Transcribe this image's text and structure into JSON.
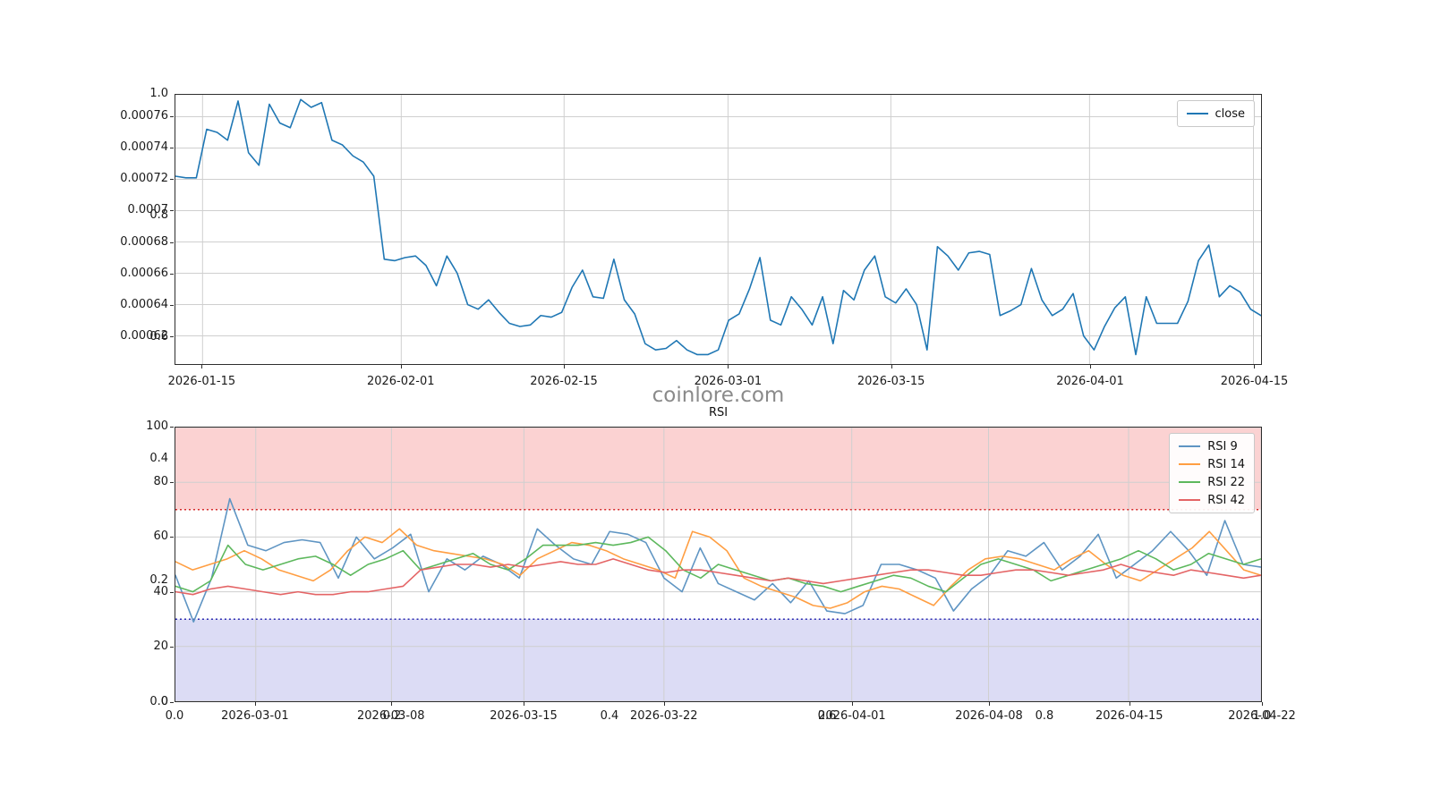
{
  "watermark": "coinlore.com",
  "overlay_axis": {
    "x_ticks": [
      {
        "label": "0.0",
        "pos": 0.0
      },
      {
        "label": "0.2",
        "pos": 0.2
      },
      {
        "label": "0.4",
        "pos": 0.4
      },
      {
        "label": "0.6",
        "pos": 0.6
      },
      {
        "label": "0.8",
        "pos": 0.8
      },
      {
        "label": "1.0",
        "pos": 1.0
      }
    ],
    "y_ticks": [
      {
        "label": "0.0",
        "pos": 0.0
      },
      {
        "label": "0.2",
        "pos": 0.2
      },
      {
        "label": "0.4",
        "pos": 0.4
      },
      {
        "label": "0.6",
        "pos": 0.6
      },
      {
        "label": "0.8",
        "pos": 0.8
      },
      {
        "label": "1.0",
        "pos": 1.0
      }
    ]
  },
  "chart_data": [
    {
      "type": "line",
      "title": "",
      "grid": true,
      "legend_position": "upper right",
      "ylim": [
        0.000602,
        0.000774
      ],
      "x_ticks": [
        {
          "label": "2026-01-15",
          "pos": 0.025
        },
        {
          "label": "2026-02-01",
          "pos": 0.208
        },
        {
          "label": "2026-02-15",
          "pos": 0.358
        },
        {
          "label": "2026-03-01",
          "pos": 0.509
        },
        {
          "label": "2026-03-15",
          "pos": 0.659
        },
        {
          "label": "2026-04-01",
          "pos": 0.842
        },
        {
          "label": "2026-04-15",
          "pos": 0.993
        }
      ],
      "y_ticks": [
        {
          "label": "0.00062",
          "value": 0.00062
        },
        {
          "label": "0.00064",
          "value": 0.00064
        },
        {
          "label": "0.00066",
          "value": 0.00066
        },
        {
          "label": "0.00068",
          "value": 0.00068
        },
        {
          "label": "0.0007",
          "value": 0.0007
        },
        {
          "label": "0.00072",
          "value": 0.00072
        },
        {
          "label": "0.00074",
          "value": 0.00074
        },
        {
          "label": "0.00076",
          "value": 0.00076
        }
      ],
      "series": [
        {
          "name": "close",
          "color": "#1f77b4",
          "values": [
            0.000722,
            0.000721,
            0.000721,
            0.000752,
            0.00075,
            0.000745,
            0.00077,
            0.000737,
            0.000729,
            0.000768,
            0.000756,
            0.000753,
            0.000771,
            0.000766,
            0.000769,
            0.000745,
            0.000742,
            0.000735,
            0.000731,
            0.000722,
            0.000669,
            0.000668,
            0.00067,
            0.000671,
            0.000665,
            0.000652,
            0.000671,
            0.00066,
            0.00064,
            0.000637,
            0.000643,
            0.000635,
            0.000628,
            0.000626,
            0.000627,
            0.000633,
            0.000632,
            0.000635,
            0.000651,
            0.000662,
            0.000645,
            0.000644,
            0.000669,
            0.000643,
            0.000634,
            0.000615,
            0.000611,
            0.000612,
            0.000617,
            0.000611,
            0.000608,
            0.000608,
            0.000611,
            0.00063,
            0.000634,
            0.00065,
            0.00067,
            0.00063,
            0.000627,
            0.000645,
            0.000637,
            0.000627,
            0.000645,
            0.000615,
            0.000649,
            0.000643,
            0.000662,
            0.000671,
            0.000645,
            0.000641,
            0.00065,
            0.00064,
            0.000611,
            0.000677,
            0.000671,
            0.000662,
            0.000673,
            0.000674,
            0.000672,
            0.000633,
            0.000636,
            0.00064,
            0.000663,
            0.000643,
            0.000633,
            0.000637,
            0.000647,
            0.00062,
            0.000611,
            0.000626,
            0.000638,
            0.000645,
            0.000608,
            0.000645,
            0.000628,
            0.000628,
            0.000628,
            0.000642,
            0.000668,
            0.000678,
            0.000645,
            0.000652,
            0.000648,
            0.000637,
            0.000633
          ]
        }
      ]
    },
    {
      "type": "line",
      "title": "RSI",
      "grid": true,
      "legend_position": "upper right",
      "ylim": [
        0,
        100
      ],
      "x_ticks": [
        {
          "label": "2026-03-01",
          "pos": 0.074
        },
        {
          "label": "2026-03-08",
          "pos": 0.199
        },
        {
          "label": "2026-03-15",
          "pos": 0.321
        },
        {
          "label": "2026-03-22",
          "pos": 0.45
        },
        {
          "label": "2026-04-01",
          "pos": 0.623
        },
        {
          "label": "2026-04-08",
          "pos": 0.749
        },
        {
          "label": "2026-04-15",
          "pos": 0.878
        },
        {
          "label": "2026-04-22",
          "pos": 1.0
        }
      ],
      "y_ticks": [
        {
          "label": "0",
          "value": 0
        },
        {
          "label": "20",
          "value": 20
        },
        {
          "label": "40",
          "value": 40
        },
        {
          "label": "60",
          "value": 60
        },
        {
          "label": "80",
          "value": 80
        },
        {
          "label": "100",
          "value": 100
        }
      ],
      "bands": [
        {
          "name": "overbought-band",
          "from": 70,
          "to": 100,
          "color": "#fbd2d2"
        },
        {
          "name": "oversold-band",
          "from": 0,
          "to": 30,
          "color": "#dcdcf5"
        }
      ],
      "hlines": [
        {
          "name": "overbought-threshold-line",
          "value": 70,
          "color": "#d42a2a",
          "style": "dotted"
        },
        {
          "name": "oversold-threshold-line",
          "value": 30,
          "color": "#2a2ab0",
          "style": "dotted"
        }
      ],
      "series": [
        {
          "name": "RSI 9",
          "color": "#5f95c3",
          "values": [
            46,
            29,
            45,
            74,
            57,
            55,
            58,
            59,
            58,
            45,
            60,
            52,
            56,
            61,
            40,
            52,
            48,
            53,
            50,
            45,
            63,
            57,
            52,
            50,
            62,
            61,
            58,
            45,
            40,
            56,
            43,
            40,
            37,
            43,
            36,
            44,
            33,
            32,
            35,
            50,
            50,
            48,
            45,
            33,
            41,
            46,
            55,
            53,
            58,
            48,
            53,
            61,
            45,
            50,
            55,
            62,
            55,
            46,
            66,
            50,
            49
          ]
        },
        {
          "name": "RSI 14",
          "color": "#ff9e42",
          "values": [
            51,
            48,
            50,
            52,
            55,
            52,
            48,
            46,
            44,
            48,
            55,
            60,
            58,
            63,
            57,
            55,
            54,
            53,
            52,
            50,
            46,
            52,
            55,
            58,
            57,
            55,
            52,
            50,
            48,
            45,
            62,
            60,
            55,
            45,
            42,
            40,
            38,
            35,
            34,
            36,
            40,
            42,
            41,
            38,
            35,
            42,
            48,
            52,
            53,
            52,
            50,
            48,
            52,
            55,
            50,
            46,
            44,
            48,
            52,
            56,
            62,
            55,
            48,
            46
          ]
        },
        {
          "name": "RSI 22",
          "color": "#5db85d",
          "values": [
            42,
            40,
            44,
            57,
            50,
            48,
            50,
            52,
            53,
            50,
            46,
            50,
            52,
            55,
            48,
            50,
            52,
            54,
            50,
            48,
            52,
            57,
            57,
            57,
            58,
            57,
            58,
            60,
            55,
            48,
            45,
            50,
            48,
            46,
            44,
            45,
            43,
            42,
            40,
            42,
            44,
            46,
            45,
            42,
            40,
            45,
            50,
            52,
            50,
            48,
            44,
            46,
            48,
            50,
            52,
            55,
            52,
            48,
            50,
            54,
            52,
            50,
            52
          ]
        },
        {
          "name": "RSI 42",
          "color": "#e46465",
          "values": [
            40,
            39,
            41,
            42,
            41,
            40,
            39,
            40,
            39,
            39,
            40,
            40,
            41,
            42,
            48,
            49,
            50,
            50,
            49,
            50,
            49,
            50,
            51,
            50,
            50,
            52,
            50,
            48,
            47,
            48,
            48,
            47,
            46,
            45,
            44,
            45,
            44,
            43,
            44,
            45,
            46,
            47,
            48,
            48,
            47,
            46,
            46,
            47,
            48,
            48,
            47,
            46,
            47,
            48,
            50,
            48,
            47,
            46,
            48,
            47,
            46,
            45,
            46
          ]
        }
      ]
    }
  ]
}
